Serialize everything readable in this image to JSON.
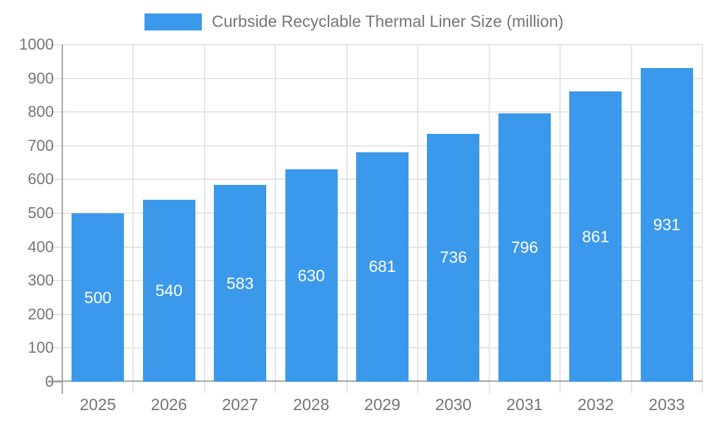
{
  "legend": {
    "label": "Curbside Recyclable Thermal Liner Size (million)"
  },
  "chart_data": {
    "type": "bar",
    "title": "Curbside Recyclable Thermal Liner Size (million)",
    "categories": [
      "2025",
      "2026",
      "2027",
      "2028",
      "2029",
      "2030",
      "2031",
      "2032",
      "2033"
    ],
    "values": [
      500,
      540,
      583,
      630,
      681,
      736,
      796,
      861,
      931
    ],
    "xlabel": "",
    "ylabel": "",
    "ylim": [
      0,
      1000
    ],
    "y_ticks": [
      0,
      100,
      200,
      300,
      400,
      500,
      600,
      700,
      800,
      900,
      1000
    ],
    "grid": true,
    "legend_position": "top-center",
    "value_labels": "inside-center",
    "colors": {
      "bar": "#3B99EC",
      "value_label": "#FFFFFF",
      "axis": "#A6A6A6",
      "gridline": "#E6E6E6",
      "tick_text": "#757575"
    }
  }
}
